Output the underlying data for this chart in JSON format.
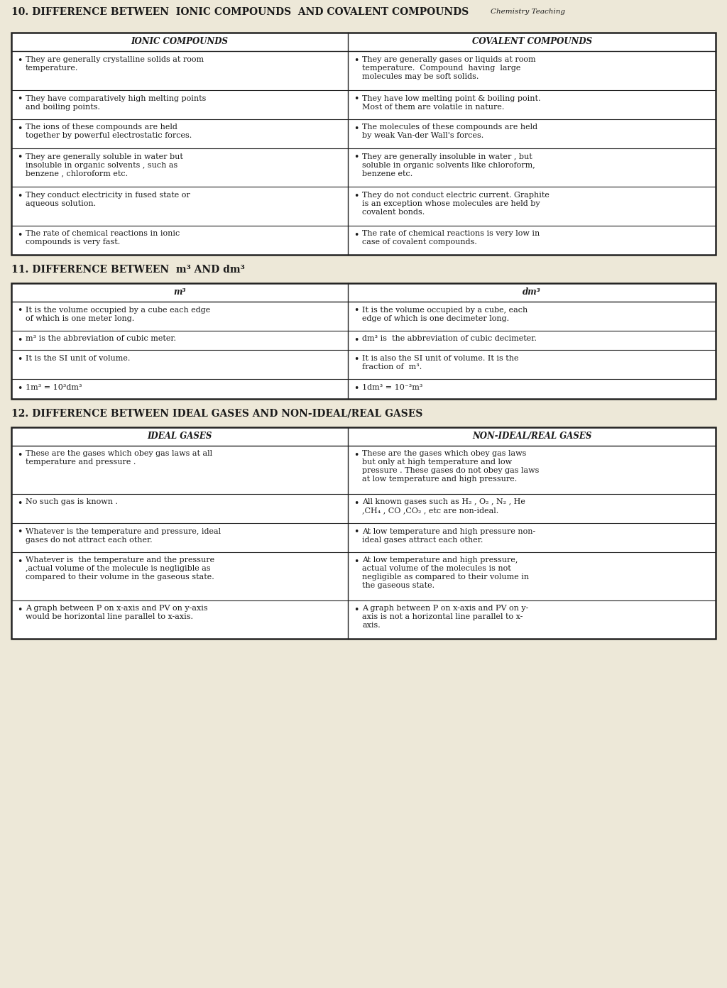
{
  "bg_color": "#ede8d8",
  "text_color": "#1a1a1a",
  "border_color": "#222222",
  "section10_title": "10. DIFFERENCE BETWEEN  IONIC COMPOUNDS  AND COVALENT COMPOUNDS",
  "section10_subtitle": "Chemistry Teaching",
  "section10_col1_header": "IONIC COMPOUNDS",
  "section10_col2_header": "COVALENT COMPOUNDS",
  "section10_col1": [
    "They are generally crystalline solids at room\ntemperature.",
    "They have comparatively high melting points\nand boiling points.",
    "The ions of these compounds are held\ntogether by powerful electrostatic forces.",
    "They are generally soluble in water but\ninsoluble in organic solvents , such as\nbenzene , chloroform etc.",
    "They conduct electricity in fused state or\naqueous solution.",
    "The rate of chemical reactions in ionic\ncompounds is very fast."
  ],
  "section10_col2": [
    "They are generally gases or liquids at room\ntemperature.  Compound  having  large\nmolecules may be soft solids.",
    "They have low melting point & boiling point.\nMost of them are volatile in nature.",
    "The molecules of these compounds are held\nby weak Van-der Wall's forces.",
    "They are generally insoluble in water , but\nsoluble in organic solvents like chloroform,\nbenzene etc.",
    "They do not conduct electric current. Graphite\nis an exception whose molecules are held by\ncovalent bonds.",
    "The rate of chemical reactions is very low in\ncase of covalent compounds."
  ],
  "section11_title": "11. DIFFERENCE BETWEEN  m³ AND dm³",
  "section11_col1_header": "m³",
  "section11_col2_header": "dm³",
  "section11_col1": [
    "It is the volume occupied by a cube each edge\nof which is one meter long.",
    "m³ is the abbreviation of cubic meter.",
    "It is the SI unit of volume.",
    "1m³ = 10³dm³"
  ],
  "section11_col2": [
    "It is the volume occupied by a cube, each\nedge of which is one decimeter long.",
    "dm³ is  the abbreviation of cubic decimeter.",
    "It is also the SI unit of volume. It is the\nfraction of  m³.",
    "1dm³ = 10⁻³m³"
  ],
  "section12_title": "12. DIFFERENCE BETWEEN IDEAL GASES AND NON-IDEAL/REAL GASES",
  "section12_col1_header": "IDEAL GASES",
  "section12_col2_header": "NON-IDEAL/REAL GASES",
  "section12_col1": [
    "These are the gases which obey gas laws at all\ntemperature and pressure .",
    "No such gas is known .",
    "Whatever is the temperature and pressure, ideal\ngases do not attract each other.",
    "Whatever is  the temperature and the pressure\n,actual volume of the molecule is negligible as\ncompared to their volume in the gaseous state.",
    "A graph between P on x-axis and PV on y-axis\nwould be horizontal line parallel to x-axis."
  ],
  "section12_col2": [
    "These are the gases which obey gas laws\nbut only at high temperature and low\npressure . These gases do not obey gas laws\nat low temperature and high pressure.",
    "All known gases such as H₂ , O₂ , N₂ , He\n,CH₄ , CO ,CO₂ , etc are non-ideal.",
    "At low temperature and high pressure non-\nideal gases attract each other.",
    "At low temperature and high pressure,\nactual volume of the molecules is not\nnegligible as compared to their volume in\nthe gaseous state.",
    "A graph between P on x-axis and PV on y-\naxis is not a horizontal line parallel to x-\naxis."
  ]
}
